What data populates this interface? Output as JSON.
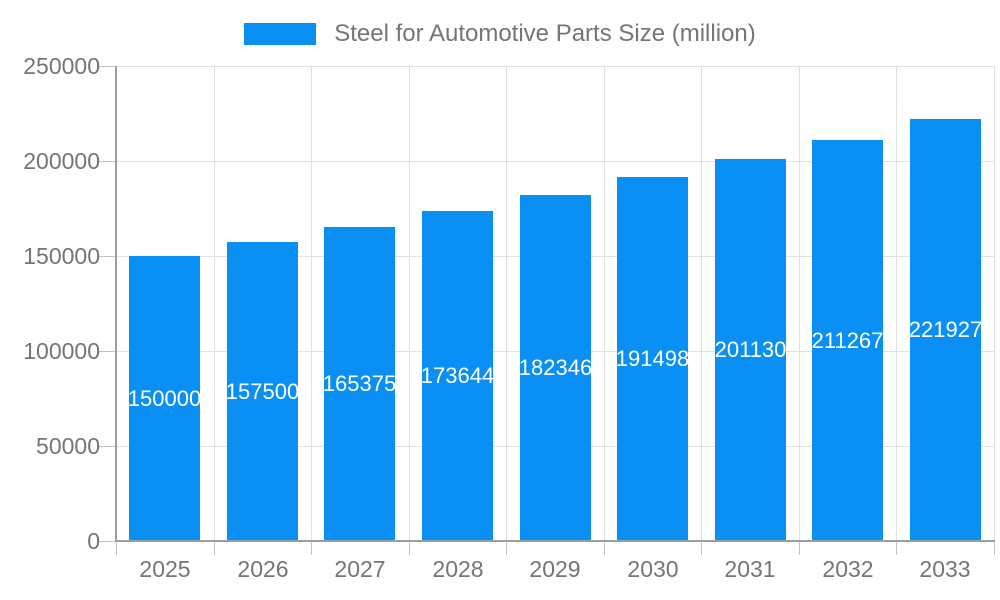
{
  "chart_data": {
    "type": "bar",
    "title": "",
    "categories": [
      "2025",
      "2026",
      "2027",
      "2028",
      "2029",
      "2030",
      "2031",
      "2032",
      "2033"
    ],
    "series": [
      {
        "name": "Steel for Automotive Parts Size (million)",
        "values": [
          150000,
          157500,
          165375,
          173644,
          182346,
          191498,
          201130,
          211267,
          221927
        ]
      }
    ],
    "bar_labels": [
      "150000",
      "157500",
      "165375",
      "173644",
      "182346",
      "191498",
      "201130",
      "211267",
      "221927"
    ],
    "xlabel": "",
    "ylabel": "",
    "ylim": [
      0,
      250000
    ],
    "yticks": [
      0,
      50000,
      100000,
      150000,
      200000,
      250000
    ],
    "ytick_labels": [
      "0",
      "50000",
      "100000",
      "150000",
      "200000",
      "250000"
    ],
    "grid": true,
    "legend_position": "top-center",
    "colors": {
      "bar": "#0a90f5",
      "bar_value_text": "#ffffff",
      "axis_text": "#757575",
      "gridline": "#e0e0e0",
      "axis_line": "#9e9e9e",
      "tick": "#c2c2c2",
      "background": "#ffffff"
    }
  }
}
